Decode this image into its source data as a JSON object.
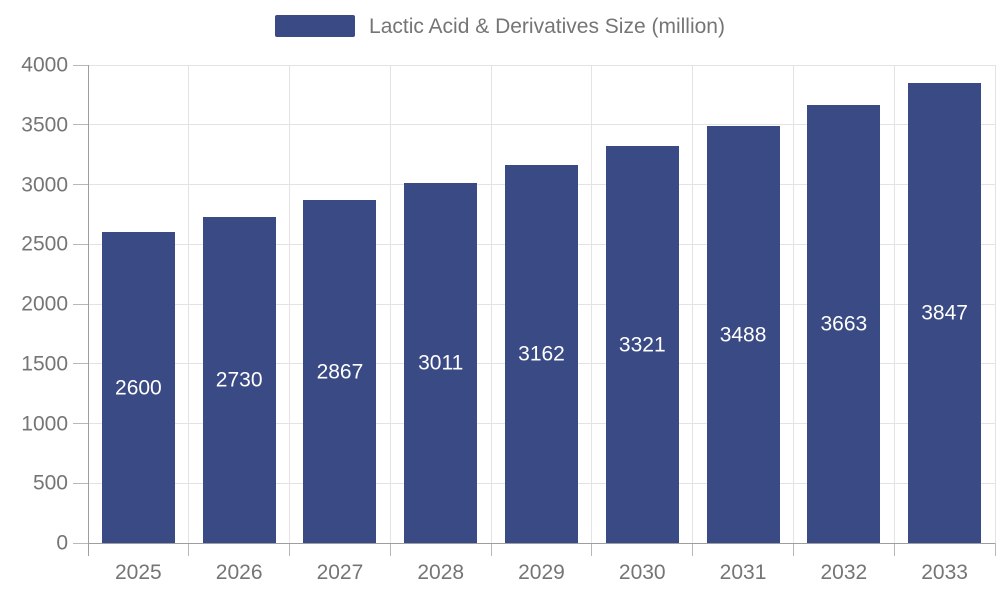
{
  "legend": {
    "label": "Lactic Acid & Derivatives Size (million)"
  },
  "chart_data": {
    "type": "bar",
    "title": "Lactic Acid & Derivatives Size (million)",
    "categories": [
      "2025",
      "2026",
      "2027",
      "2028",
      "2029",
      "2030",
      "2031",
      "2032",
      "2033"
    ],
    "values": [
      2600,
      2730,
      2867,
      3011,
      3162,
      3321,
      3488,
      3663,
      3847
    ],
    "xlabel": "",
    "ylabel": "",
    "ylim": [
      0,
      4000
    ],
    "ytick_step": 500,
    "grid": true,
    "legend_position": "top-center",
    "value_label_position": "inside-center",
    "colors": {
      "bar": "#3A4A84",
      "grid": "#e3e3e3",
      "axis": "#9e9e9e",
      "tick": "#b8b8b8",
      "text": "#757575",
      "value_label": "#ffffff",
      "background": "#ffffff"
    }
  }
}
